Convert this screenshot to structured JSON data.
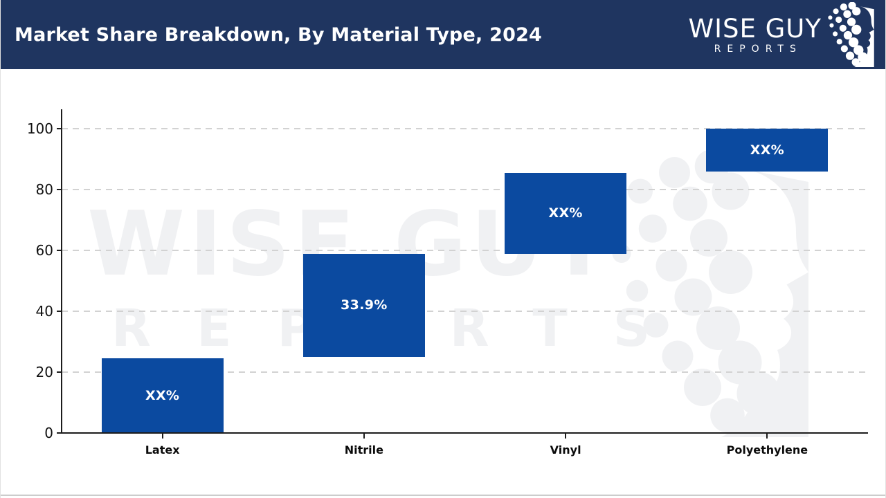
{
  "header": {
    "title": "Market Share Breakdown, By Material Type, 2024",
    "logo": {
      "line1": "WISE GUY",
      "line2": "REPORTS"
    }
  },
  "watermark": {
    "line1": "WISE GUY",
    "line2": "REPORTS"
  },
  "colors": {
    "header_bg": "#1f3560",
    "bar": "#0b4aa0",
    "bar_label": "#ffffff",
    "grid": "#d2d2d2",
    "axis": "#1c1c1c",
    "watermark": "#f0f1f3"
  },
  "chart_data": {
    "type": "bar",
    "subtype": "floating-waterfall",
    "title": "Market Share Breakdown, By Material Type, 2024",
    "categories": [
      "Latex",
      "Nitrile",
      "Vinyl",
      "Polyethylene"
    ],
    "segments": [
      {
        "category": "Latex",
        "from": 0,
        "to": 24.5,
        "label": "XX%"
      },
      {
        "category": "Nitrile",
        "from": 25,
        "to": 58.9,
        "label": "33.9%"
      },
      {
        "category": "Vinyl",
        "from": 58.9,
        "to": 85.5,
        "label": "XX%"
      },
      {
        "category": "Polyethylene",
        "from": 85.8,
        "to": 100,
        "label": "XX%"
      }
    ],
    "xlabel": "",
    "ylabel": "",
    "ylim": [
      0,
      100
    ],
    "yticks": [
      0,
      20,
      40,
      60,
      80,
      100
    ],
    "grid": "dashed-horizontal",
    "legend": "none"
  }
}
